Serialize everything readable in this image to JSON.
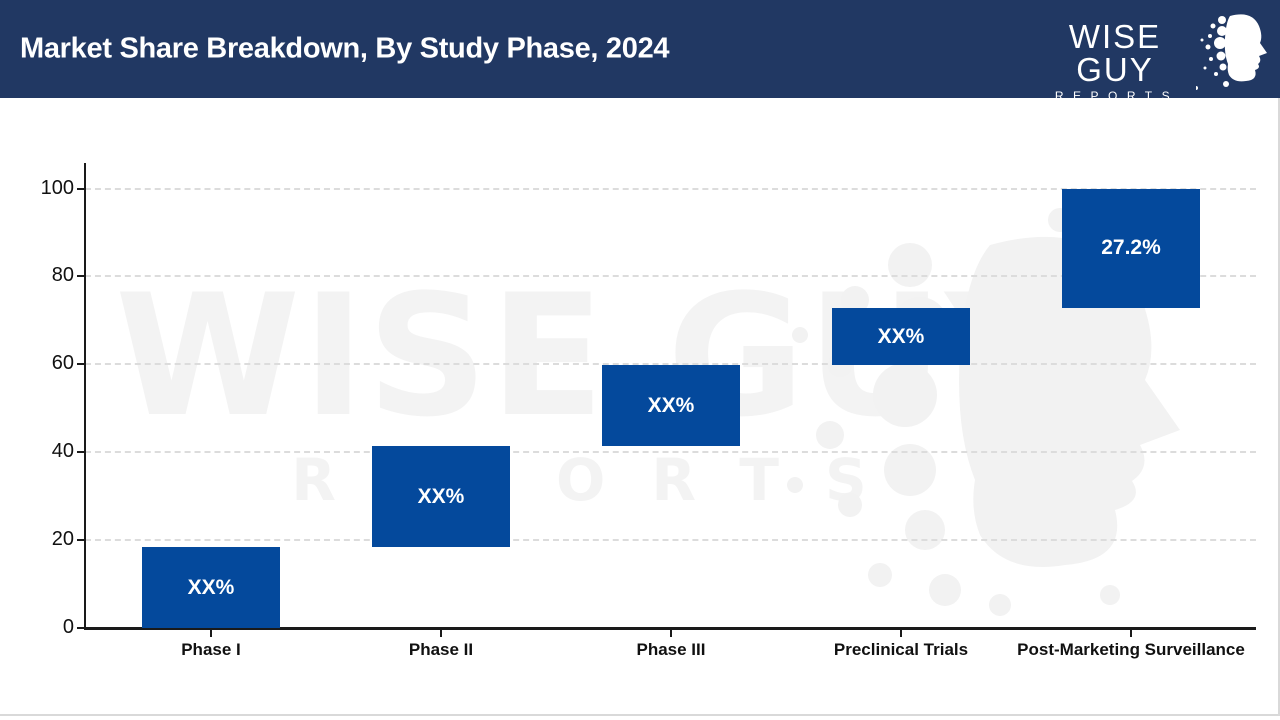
{
  "header": {
    "title": "Market Share Breakdown, By Study Phase, 2024",
    "logo": {
      "line1": "WISE GUY",
      "line2": "REPORTS"
    }
  },
  "watermark": {
    "line1": "WISE GUY",
    "line2": "REPORTS"
  },
  "chart_data": {
    "type": "bar",
    "subtype": "waterfall",
    "title": "Market Share Breakdown, By Study Phase, 2024",
    "categories": [
      "Phase I",
      "Phase II",
      "Phase III",
      "Preclinical Trials",
      "Post-Marketing Surveillance"
    ],
    "segments": [
      {
        "category": "Phase I",
        "start": 0,
        "end": 18.4,
        "bar_label": "XX%"
      },
      {
        "category": "Phase II",
        "start": 18.4,
        "end": 41.4,
        "bar_label": "XX%"
      },
      {
        "category": "Phase III",
        "start": 41.4,
        "end": 59.8,
        "bar_label": "XX%"
      },
      {
        "category": "Preclinical Trials",
        "start": 59.8,
        "end": 72.8,
        "bar_label": "XX%"
      },
      {
        "category": "Post-Marketing Surveillance",
        "start": 72.8,
        "end": 100,
        "bar_label": "27.2%"
      }
    ],
    "ylim": [
      0,
      100
    ],
    "yticks": [
      0,
      20,
      40,
      60,
      80,
      100
    ],
    "xlabel": "",
    "ylabel": "",
    "grid": "horizontal-dashed",
    "legend": "none",
    "bar_color": "#04499c",
    "bar_label_color": "#ffffff",
    "gridline_color": "#dcdcdc",
    "header_color": "#213863"
  }
}
